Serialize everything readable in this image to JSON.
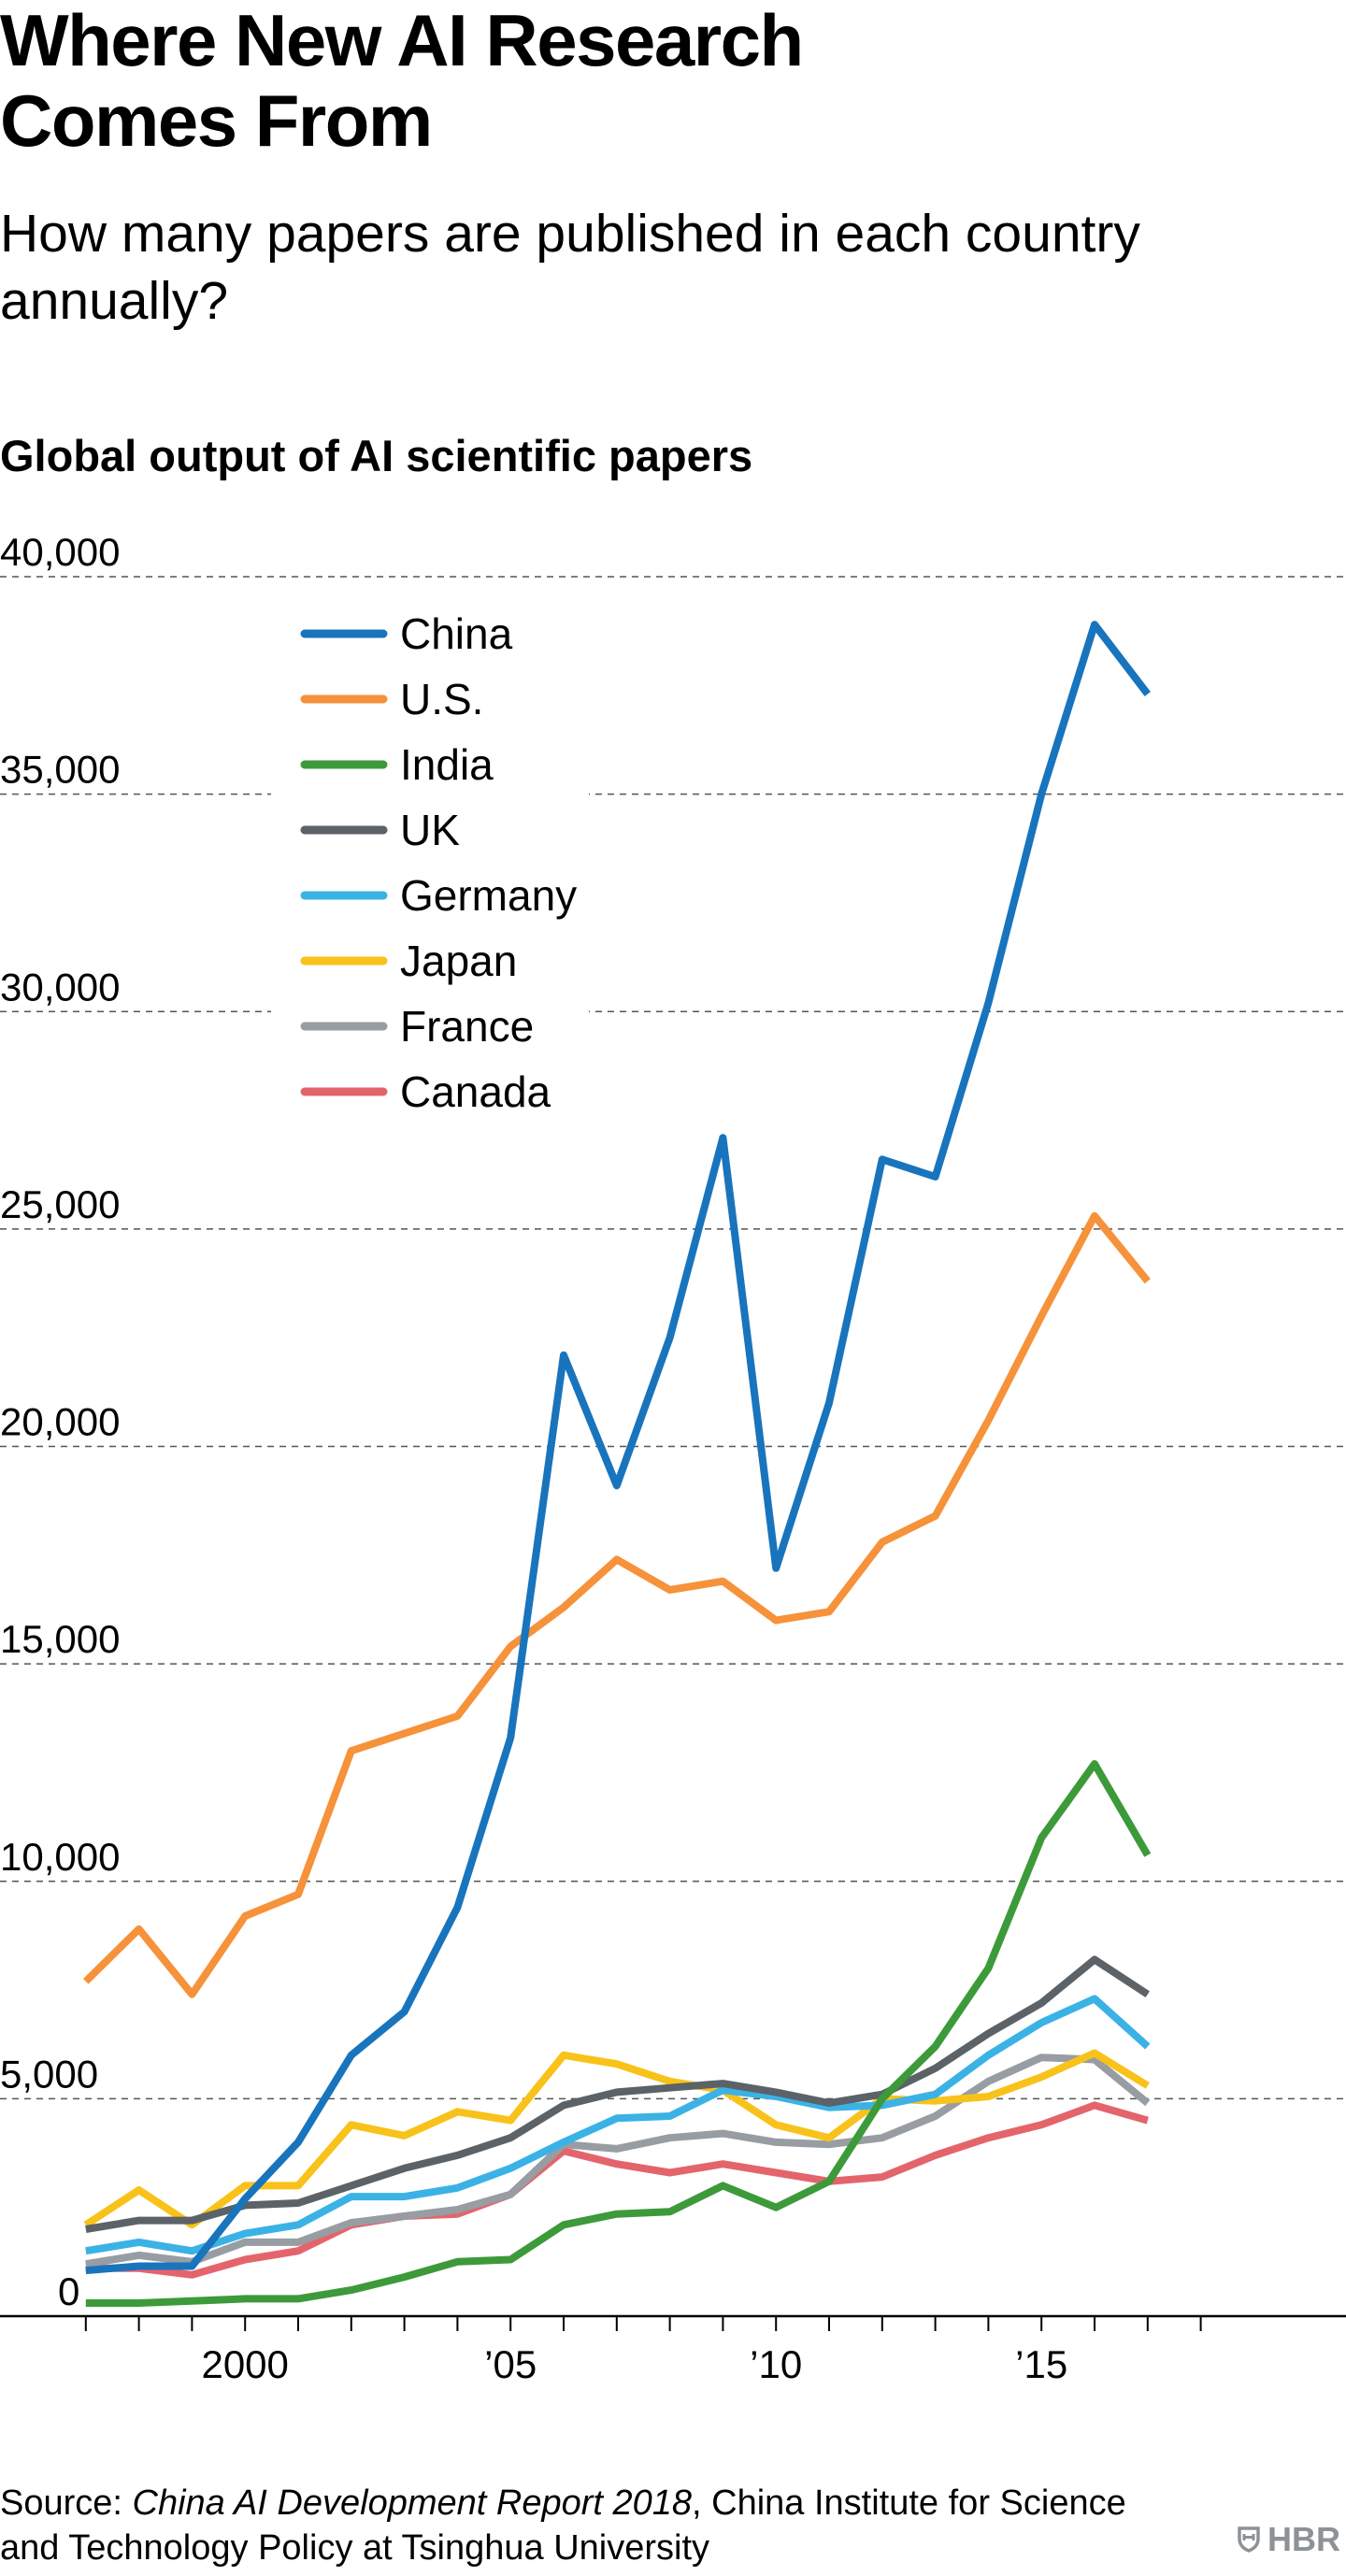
{
  "header": {
    "title_line1": "Where New AI Research",
    "title_line2": "Comes From",
    "subtitle": "How many papers are published in each country annually?"
  },
  "footer": {
    "source_prefix": "Source: ",
    "source_italic": "China AI Development Report 2018",
    "source_rest": ", China Institute for Science and Technology Policy at Tsinghua University",
    "logo_text": "HBR"
  },
  "chart_data": {
    "type": "line",
    "title": "Global output of AI scientific papers",
    "xlabel": "",
    "ylabel": "",
    "x": [
      1997,
      1998,
      1999,
      2000,
      2001,
      2002,
      2003,
      2004,
      2005,
      2006,
      2007,
      2008,
      2009,
      2010,
      2011,
      2012,
      2013,
      2014,
      2015,
      2016,
      2017
    ],
    "xlim": [
      1996,
      2019
    ],
    "ylim": [
      0,
      40000
    ],
    "y_ticks": [
      0,
      5000,
      10000,
      15000,
      20000,
      25000,
      30000,
      35000,
      40000
    ],
    "y_tick_labels": [
      "0",
      "5,000",
      "10,000",
      "15,000",
      "20,000",
      "25,000",
      "30,000",
      "35,000",
      "40,000"
    ],
    "x_tick_labels": [
      {
        "x": 2000,
        "label": "2000"
      },
      {
        "x": 2005,
        "label": "’05"
      },
      {
        "x": 2010,
        "label": "’10"
      },
      {
        "x": 2015,
        "label": "’15"
      }
    ],
    "grid": "horizontal dashed",
    "legend_position": "top-left",
    "series": [
      {
        "name": "China",
        "color": "#1874bd",
        "values": [
          1050,
          1150,
          1150,
          2700,
          4000,
          6000,
          7000,
          9400,
          13300,
          22100,
          19100,
          22500,
          27100,
          17200,
          21000,
          26600,
          26200,
          30200,
          35000,
          38900,
          37300
        ]
      },
      {
        "name": "U.S.",
        "color": "#f5923a",
        "values": [
          7700,
          8900,
          7400,
          9200,
          9700,
          13000,
          13400,
          13800,
          15400,
          16300,
          17400,
          16700,
          16900,
          16000,
          16200,
          17800,
          18400,
          20600,
          23000,
          25300,
          23800
        ]
      },
      {
        "name": "India",
        "color": "#3d9a3a",
        "values": [
          300,
          300,
          350,
          400,
          400,
          600,
          900,
          1250,
          1300,
          2100,
          2350,
          2400,
          3000,
          2500,
          3100,
          5000,
          6200,
          8000,
          11000,
          12700,
          10600
        ]
      },
      {
        "name": "UK",
        "color": "#5b6268",
        "values": [
          2000,
          2200,
          2200,
          2550,
          2600,
          3000,
          3400,
          3700,
          4100,
          4850,
          5150,
          5250,
          5350,
          5150,
          4900,
          5100,
          5700,
          6500,
          7200,
          8200,
          7400
        ]
      },
      {
        "name": "Germany",
        "color": "#3bb2e5",
        "values": [
          1500,
          1700,
          1500,
          1900,
          2100,
          2750,
          2750,
          2950,
          3400,
          4000,
          4550,
          4600,
          5200,
          5050,
          4800,
          4850,
          5100,
          6000,
          6750,
          7300,
          6200
        ]
      },
      {
        "name": "Japan",
        "color": "#f8c21a",
        "values": [
          2100,
          2900,
          2100,
          3000,
          3000,
          4400,
          4150,
          4700,
          4500,
          6000,
          5800,
          5400,
          5200,
          4400,
          4100,
          5000,
          4950,
          5050,
          5500,
          6050,
          5300
        ]
      },
      {
        "name": "France",
        "color": "#979da2",
        "values": [
          1200,
          1400,
          1250,
          1700,
          1700,
          2150,
          2300,
          2450,
          2800,
          3950,
          3850,
          4100,
          4200,
          4000,
          3950,
          4100,
          4600,
          5400,
          5950,
          5900,
          4900
        ]
      },
      {
        "name": "Canada",
        "color": "#e4646c",
        "values": [
          1100,
          1100,
          950,
          1300,
          1500,
          2100,
          2300,
          2350,
          2800,
          3800,
          3500,
          3300,
          3500,
          3300,
          3100,
          3200,
          3700,
          4100,
          4400,
          4850,
          4500
        ]
      }
    ]
  }
}
